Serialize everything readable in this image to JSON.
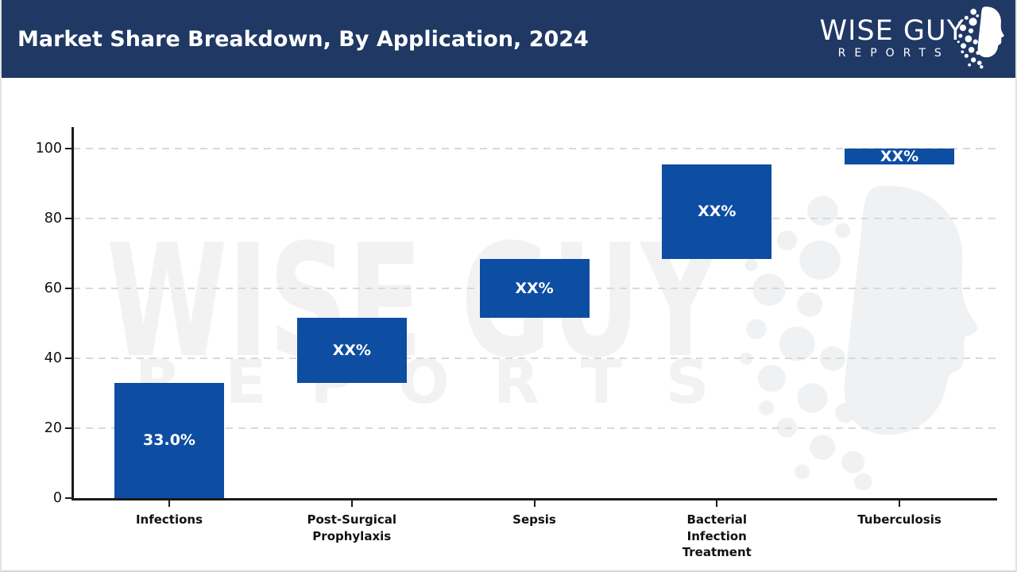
{
  "header": {
    "title": "Market Share Breakdown, By Application, 2024",
    "logo_line1": "WISE GUY",
    "logo_line2": "REPORTS"
  },
  "watermark": {
    "line1": "WISE GUY",
    "line2": "REPORTS"
  },
  "colors": {
    "header_bg": "#1f3864",
    "bar": "#0d4da2",
    "axis": "#1a1a1a",
    "gridline": "#d9d9d9",
    "tick_text": "#111111",
    "bar_label_text": "#ffffff",
    "watermark": "#f2f2f2",
    "watermark_face": "#f0f1f3"
  },
  "chart_data": {
    "type": "bar",
    "subtype": "waterfall",
    "title": "Market Share Breakdown, By Application, 2024",
    "xlabel": "",
    "ylabel": "",
    "categories": [
      "Infections",
      "Post-Surgical Prophylaxis",
      "Sepsis",
      "Bacterial Infection Treatment",
      "Tuberculosis"
    ],
    "segments": [
      {
        "category": "Infections",
        "start": 0,
        "end": 33,
        "value_label": "33.0%"
      },
      {
        "category": "Post-Surgical Prophylaxis",
        "start": 33,
        "end": 51.5,
        "value_label": "XX%"
      },
      {
        "category": "Sepsis",
        "start": 51.5,
        "end": 68.5,
        "value_label": "XX%"
      },
      {
        "category": "Bacterial Infection Treatment",
        "start": 68.5,
        "end": 95.5,
        "value_label": "XX%"
      },
      {
        "category": "Tuberculosis",
        "start": 95.5,
        "end": 100,
        "value_label": "XX%"
      }
    ],
    "yticks": [
      0,
      20,
      40,
      60,
      80,
      100
    ],
    "ylim": [
      0,
      105
    ],
    "grid": "horizontal-dashed",
    "legend": "none"
  }
}
